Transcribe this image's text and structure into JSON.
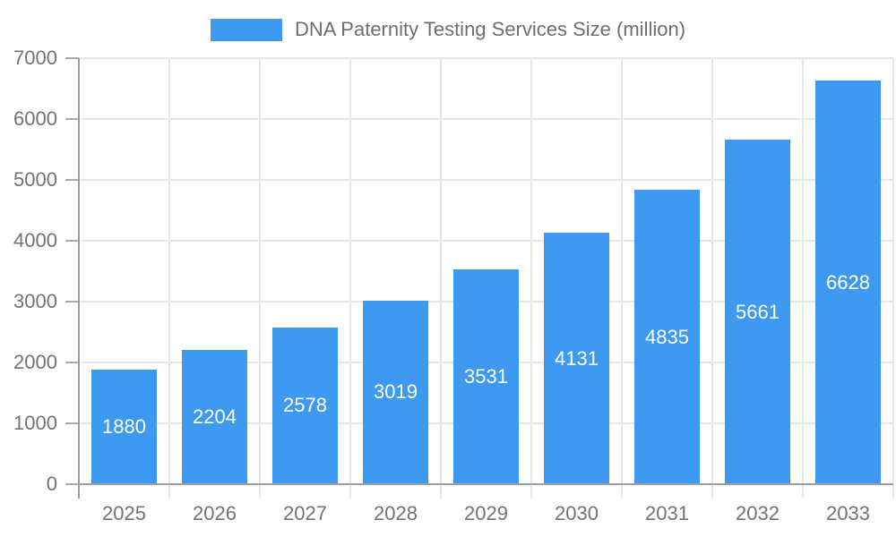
{
  "legend": {
    "label": "DNA Paternity Testing Services Size (million)"
  },
  "colors": {
    "bar": "#3d9af0",
    "value_label": "#ffffff",
    "axis_line": "#9e9e9e",
    "grid_line": "#e6e6e6",
    "tick_label": "#737373",
    "legend_text": "#6e6e6e",
    "background": "#ffffff"
  },
  "chart_data": {
    "type": "bar",
    "title": "DNA Paternity Testing Services Size (million)",
    "categories": [
      "2025",
      "2026",
      "2027",
      "2028",
      "2029",
      "2030",
      "2031",
      "2032",
      "2033"
    ],
    "values": [
      1880,
      2204,
      2578,
      3019,
      3531,
      4131,
      4835,
      5661,
      6628
    ],
    "series": [
      {
        "name": "DNA Paternity Testing Services Size (million)",
        "values": [
          1880,
          2204,
          2578,
          3019,
          3531,
          4131,
          4835,
          5661,
          6628
        ]
      }
    ],
    "xlabel": "",
    "ylabel": "",
    "ylim": [
      0,
      7000
    ],
    "yticks": [
      0,
      1000,
      2000,
      3000,
      4000,
      5000,
      6000,
      7000
    ],
    "grid": true,
    "legend_position": "top",
    "value_labels": "centered-inside-bars-white"
  }
}
